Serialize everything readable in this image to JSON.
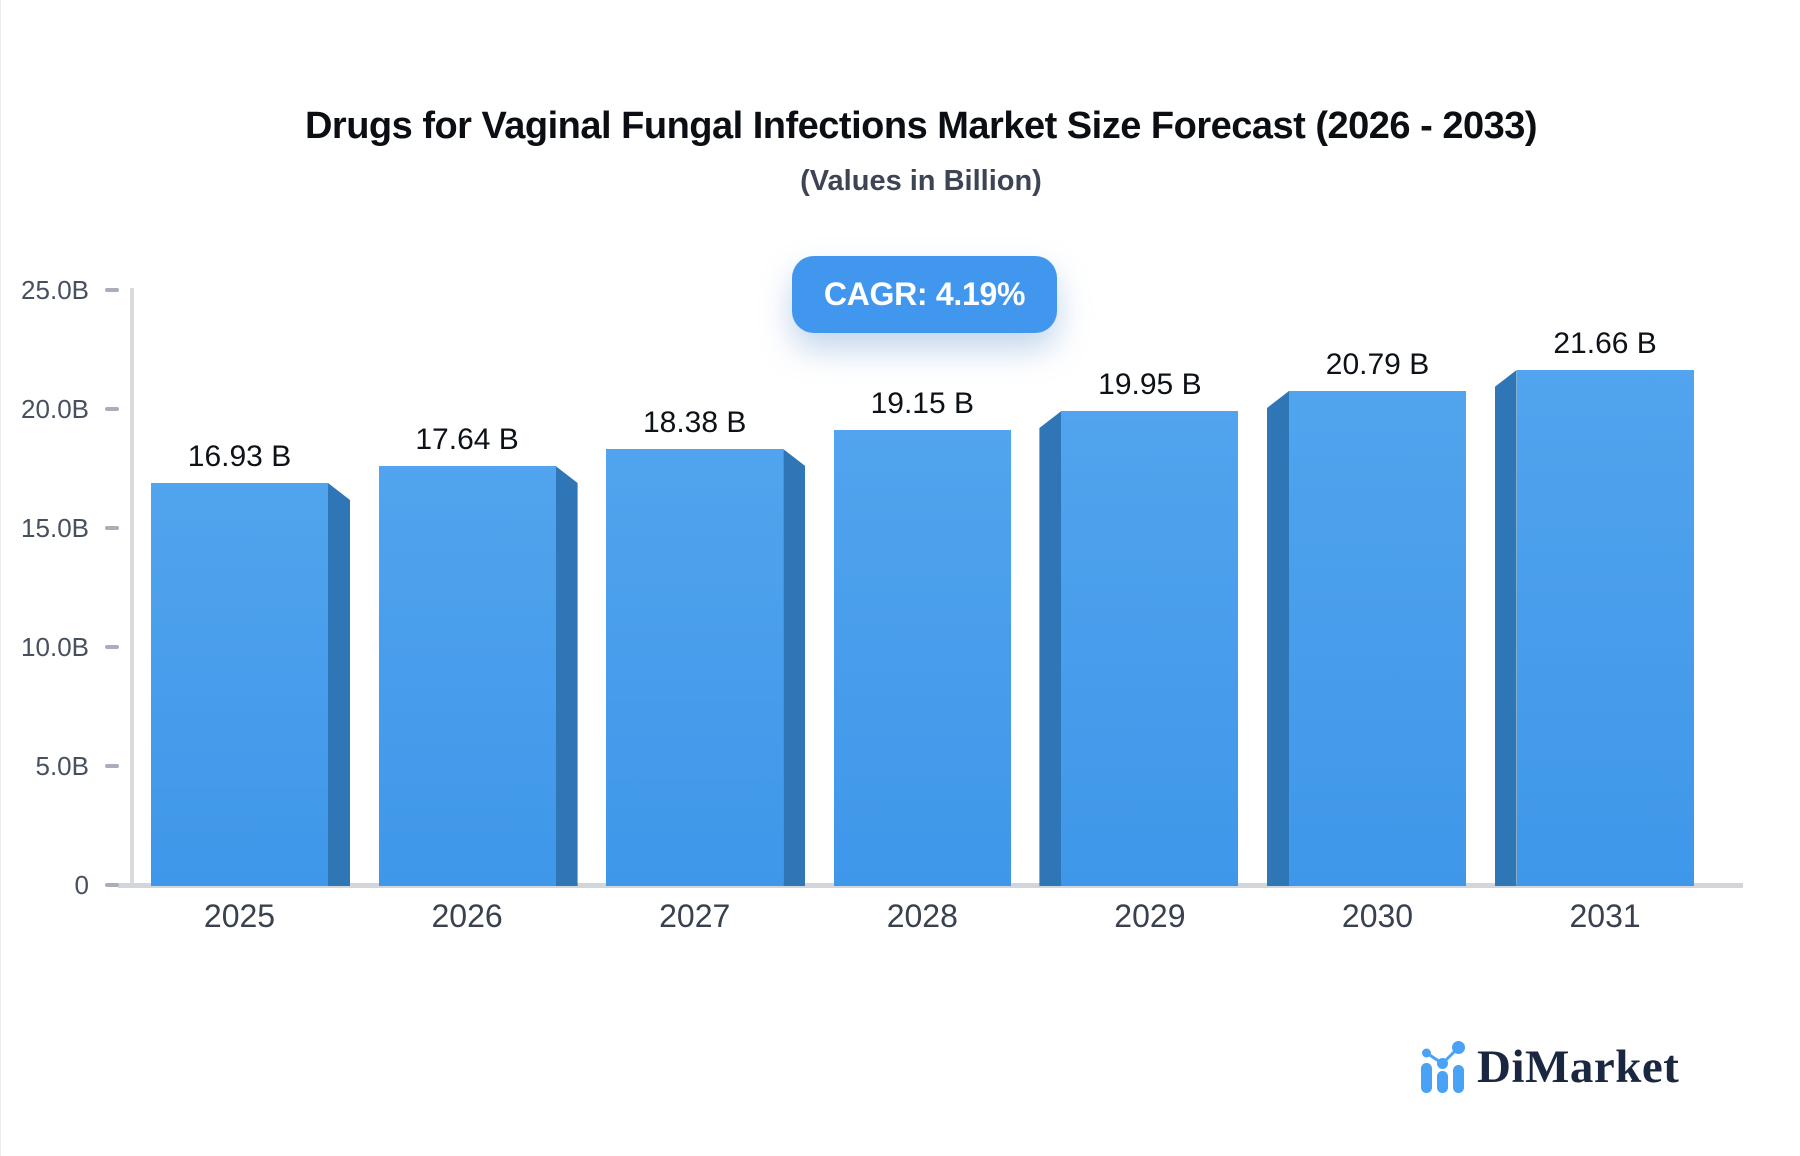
{
  "header": {
    "title": "Drugs for Vaginal Fungal Infections Market Size Forecast (2026 - 2033)",
    "subtitle": "(Values in Billion)",
    "cagr_label": "CAGR: 4.19%"
  },
  "chart_data": {
    "type": "bar",
    "title": "Drugs for Vaginal Fungal Infections Market Size Forecast (2026 - 2033)",
    "subtitle": "(Values in Billion)",
    "unit": "Billion",
    "cagr": "4.19%",
    "categories": [
      "2025",
      "2026",
      "2027",
      "2028",
      "2029",
      "2030",
      "2031"
    ],
    "values": [
      16.93,
      17.64,
      18.38,
      19.15,
      19.95,
      20.79,
      21.66
    ],
    "value_labels": [
      "16.93 B",
      "17.64 B",
      "18.38 B",
      "19.15 B",
      "19.95 B",
      "20.79 B",
      "21.66 B"
    ],
    "ylim": [
      0,
      25
    ],
    "ytick_labels": [
      "25.0B",
      "20.0B",
      "15.0B",
      "10.0B",
      "5.0B",
      "0"
    ],
    "grid": false,
    "legend": "none",
    "bar_style": "3d-perspective-toward-center",
    "colors": {
      "bar_face_top": "#51A4ED",
      "bar_face_bottom": "#3F97EA",
      "bar_side": "#2E76B6",
      "badge_bg": "#4197EE",
      "badge_text": "#FFFFFF",
      "axis_line": "#D8DADE",
      "baseline": "#D2D5DA",
      "tick": "#A9AFBA",
      "ytick_text": "#47505F",
      "xtick_text": "#39414F",
      "value_text": "#0D1218",
      "title_text": "#0B0F14",
      "subtitle_text": "#3D4554"
    }
  },
  "logo": {
    "text": "DiMarket",
    "icon": "bar-chart-trend-icon",
    "text_color": "#1B2741",
    "icon_color": "#4AA2F6"
  }
}
